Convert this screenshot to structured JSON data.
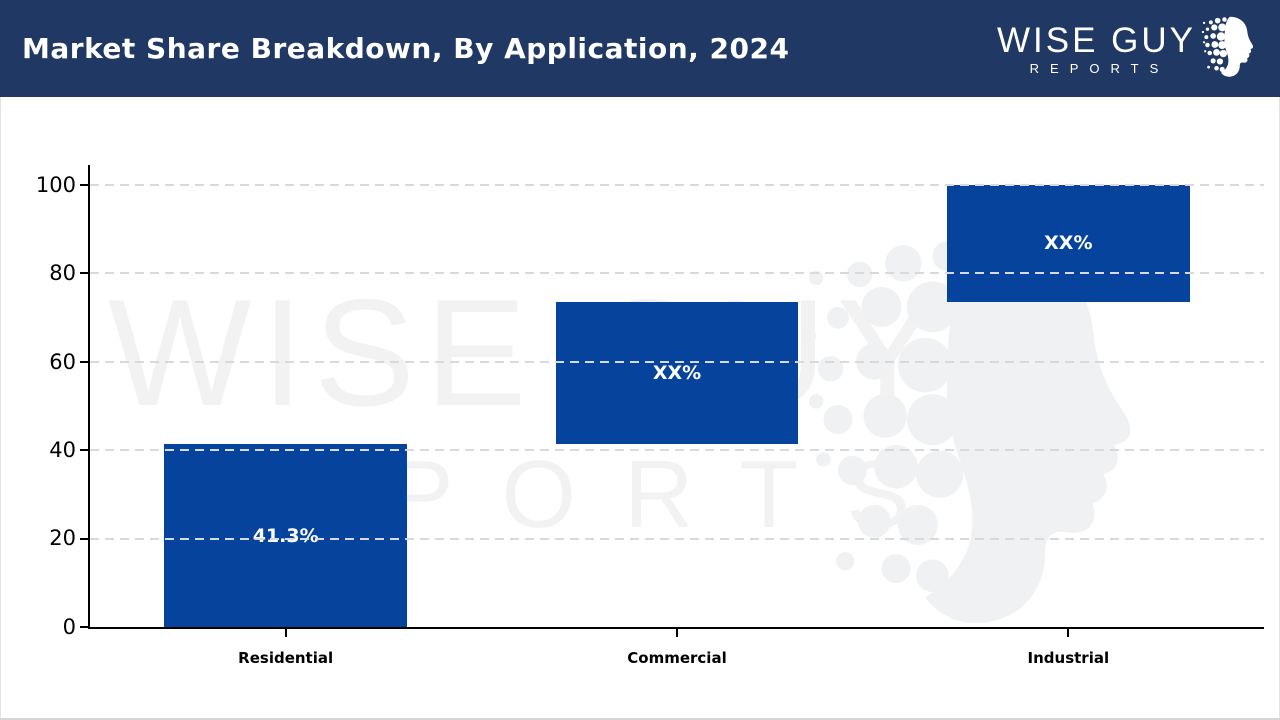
{
  "header": {
    "title": "Market Share Breakdown, By Application, 2024",
    "logo": {
      "line1": "WISE GUY",
      "line2": "REPORTS"
    }
  },
  "watermark": {
    "line1": "WISE GUY",
    "line2": "REPORTS"
  },
  "colors": {
    "header_bg": "#1f3864",
    "bar_blue": "#05439c",
    "gridline": "#d9d9d9",
    "axis": "#000000",
    "bar_label": "#ffffff",
    "watermark_gray": "#f2f2f2"
  },
  "chart_data": {
    "type": "bar",
    "subtype": "waterfall",
    "title": "Market Share Breakdown, By Application, 2024",
    "categories": [
      "Residential",
      "Commercial",
      "Industrial"
    ],
    "segments": [
      {
        "category": "Residential",
        "start": 0,
        "end": 41.3,
        "label": "41.3%"
      },
      {
        "category": "Commercial",
        "start": 41.3,
        "end": 73.5,
        "label": "XX%"
      },
      {
        "category": "Industrial",
        "start": 73.5,
        "end": 100,
        "label": "XX%"
      }
    ],
    "yticks": [
      0,
      20,
      40,
      60,
      80,
      100
    ],
    "ylim": [
      0,
      104.5
    ],
    "xlabel": "",
    "ylabel": "",
    "grid": "horizontal-dashed",
    "legend": "none"
  }
}
